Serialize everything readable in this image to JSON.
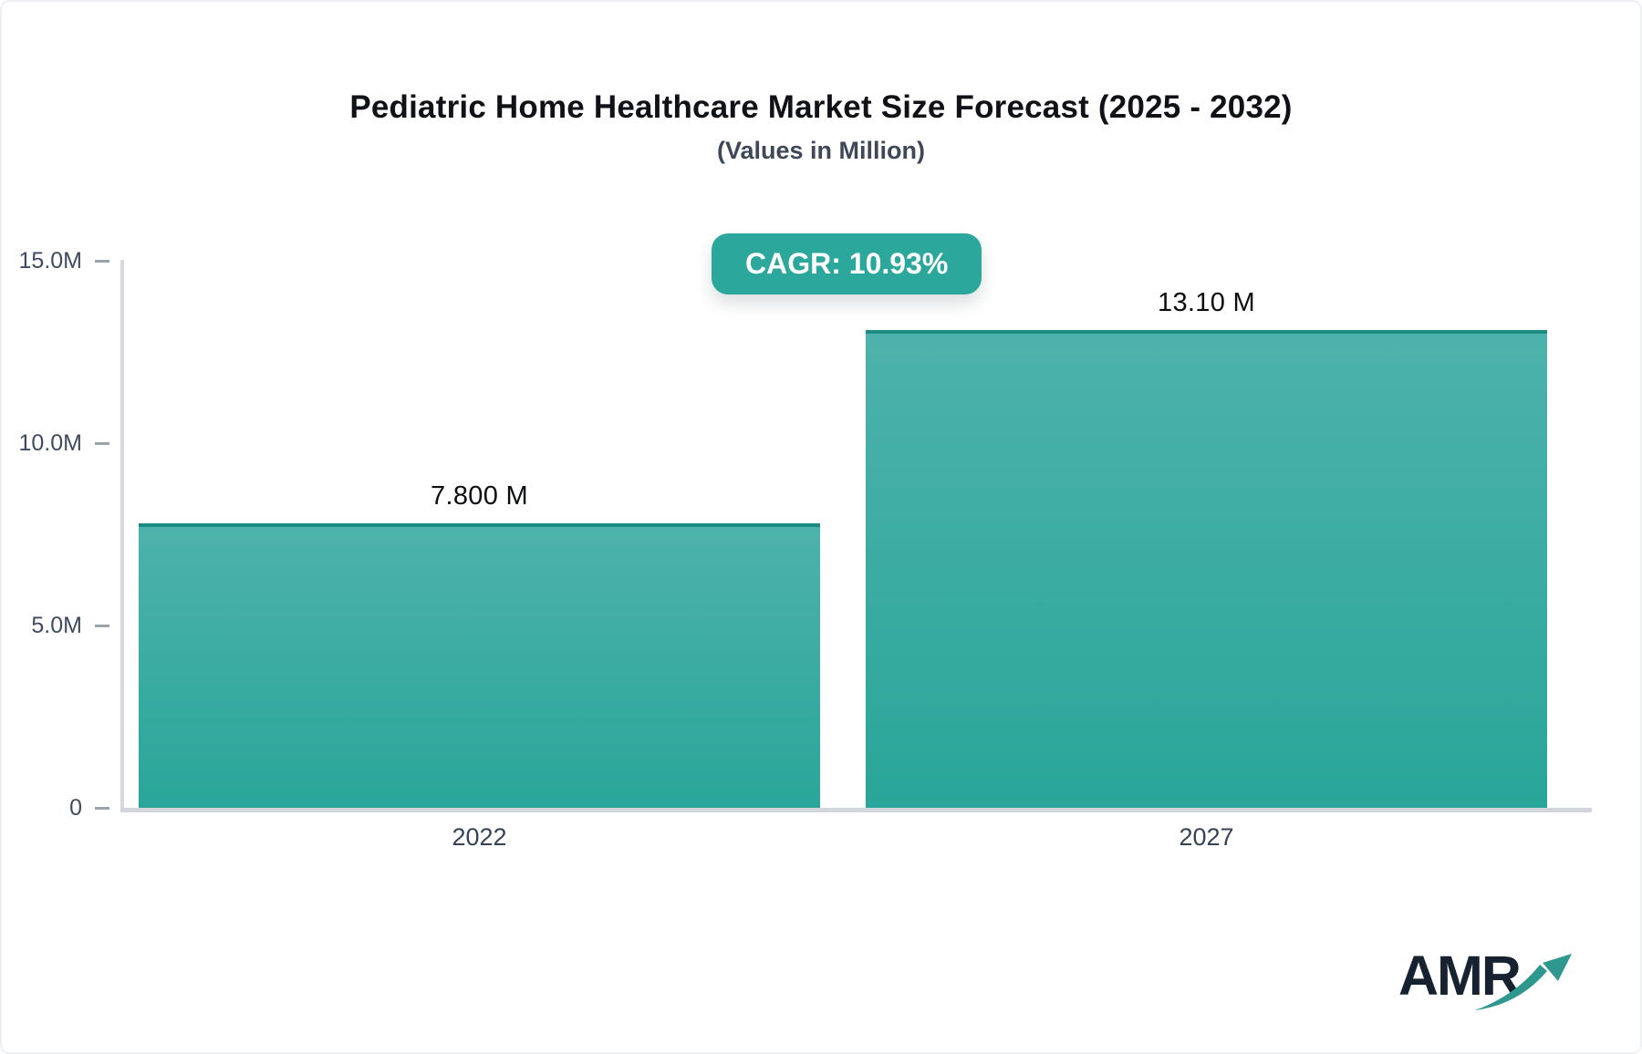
{
  "chart_data": {
    "type": "bar",
    "title": "Pediatric Home Healthcare Market Size Forecast (2025 - 2032)",
    "subtitle": "(Values in Million)",
    "cagr_badge": "CAGR: 10.93%",
    "categories": [
      "2022",
      "2027"
    ],
    "values": [
      7.8,
      13.1
    ],
    "value_labels": [
      "7.800 M",
      "13.10 M"
    ],
    "ylabel": "",
    "xlabel": "",
    "ylim": [
      0,
      15
    ],
    "yticks": [
      {
        "value": 15,
        "label": "15.0M"
      },
      {
        "value": 10,
        "label": "10.0M"
      },
      {
        "value": 5,
        "label": "5.0M"
      },
      {
        "value": 0,
        "label": "0"
      }
    ],
    "grid": false,
    "legend": "none",
    "colors": {
      "accent": "#2ba89b",
      "bar_gradient_top": "#4db2ab",
      "bar_gradient_bottom": "#29a699",
      "bar_top_border": "#1a8b7e",
      "axis_line": "#d2d6dc",
      "tick_dash": "#9aa2ae",
      "tick_text": "#3e4b61",
      "title_text": "#101217",
      "value_text": "#0b0d10"
    }
  },
  "logo": {
    "text": "AMR",
    "arrow_color": "#2e978e",
    "text_color": "#16222f"
  }
}
